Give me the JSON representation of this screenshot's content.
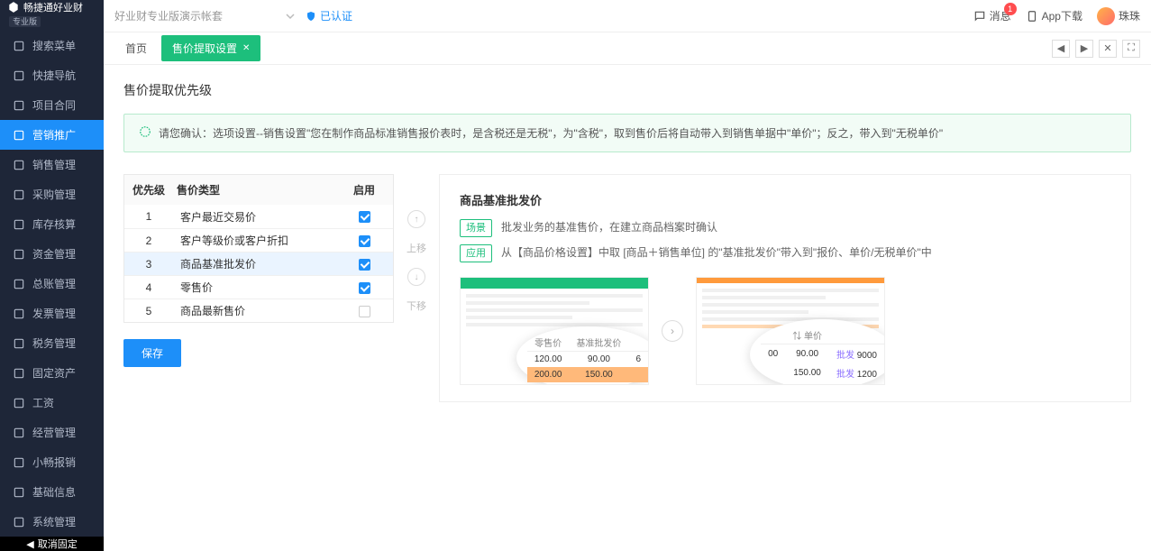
{
  "brand": {
    "name": "畅捷通好业财",
    "edition": "专业版"
  },
  "sidebar": {
    "items": [
      {
        "label": "搜索菜单",
        "icon": "search"
      },
      {
        "label": "快捷导航",
        "icon": "home"
      },
      {
        "label": "项目合同",
        "icon": "doc"
      },
      {
        "label": "营销推广",
        "icon": "grid",
        "active": true
      },
      {
        "label": "销售管理",
        "icon": "gear"
      },
      {
        "label": "采购管理",
        "icon": "bag"
      },
      {
        "label": "库存核算",
        "icon": "box"
      },
      {
        "label": "资金管理",
        "icon": "money"
      },
      {
        "label": "总账管理",
        "icon": "ledger"
      },
      {
        "label": "发票管理",
        "icon": "invoice"
      },
      {
        "label": "税务管理",
        "icon": "tax"
      },
      {
        "label": "固定资产",
        "icon": "asset"
      },
      {
        "label": "工资",
        "icon": "pay"
      },
      {
        "label": "经营管理",
        "icon": "biz"
      },
      {
        "label": "小畅报销",
        "icon": "bx"
      },
      {
        "label": "基础信息",
        "icon": "info"
      },
      {
        "label": "系统管理",
        "icon": "sys"
      }
    ],
    "pin": "取消固定"
  },
  "topbar": {
    "account": "好业财专业版演示帐套",
    "verified": "已认证",
    "msg": "消息",
    "msg_count": "1",
    "download": "App下载",
    "user": "珠珠"
  },
  "tabs": {
    "home": "首页",
    "active": "售价提取设置"
  },
  "page": {
    "title": "售价提取优先级",
    "alert": "请您确认：选项设置--销售设置\"您在制作商品标准销售报价表时，是含税还是无税\"，为\"含税\"，取到售价后将自动带入到销售单据中\"单价\"；反之，带入到\"无税单价\"",
    "table": {
      "headers": {
        "priority": "优先级",
        "type": "售价类型",
        "enable": "启用"
      },
      "rows": [
        {
          "pri": "1",
          "type": "客户最近交易价",
          "enabled": true
        },
        {
          "pri": "2",
          "type": "客户等级价或客户折扣",
          "enabled": true
        },
        {
          "pri": "3",
          "type": "商品基准批发价",
          "enabled": true
        },
        {
          "pri": "4",
          "type": "零售价",
          "enabled": true
        },
        {
          "pri": "5",
          "type": "商品最新售价",
          "enabled": false
        }
      ],
      "selected_index": 2
    },
    "move": {
      "up": "上移",
      "down": "下移"
    },
    "save": "保存",
    "explain": {
      "title": "商品基准批发价",
      "scene_label": "场景",
      "scene_text": "批发业务的基准售价，在建立商品档案时确认",
      "apply_label": "应用",
      "apply_text": "从【商品价格设置】中取 [商品＋销售单位] 的\"基准批发价\"带入到\"报价、单价/无税单价\"中",
      "preview_left": {
        "cols": [
          "零售价",
          "基准批发价"
        ],
        "rows": [
          [
            "120.00",
            "90.00"
          ],
          [
            "200.00",
            "150.00"
          ]
        ],
        "extra": "6"
      },
      "preview_right": {
        "col": "单价",
        "rows": [
          [
            "90.00",
            "批发",
            "9000"
          ],
          [
            "150.00",
            "批发",
            "1200"
          ]
        ],
        "extra": "00"
      }
    }
  },
  "colors": {
    "sidebar_bg": "#1e2638",
    "primary_blue": "#1d8ff9",
    "primary_green": "#1dbf7c",
    "orange": "#ff9a3c",
    "alert_border": "#b7eacd",
    "alert_bg": "#f2fcf6"
  }
}
